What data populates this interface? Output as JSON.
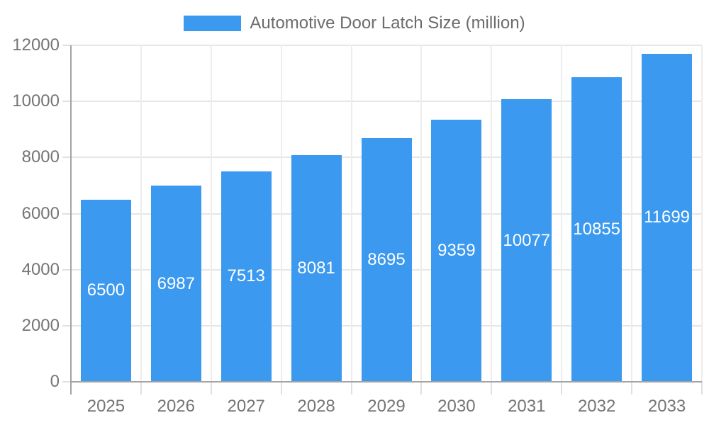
{
  "chart_data": {
    "type": "bar",
    "title": "Automotive Door Latch Size (million)",
    "legend": {
      "label": "Automotive Door Latch Size (million)",
      "position": "top"
    },
    "categories": [
      "2025",
      "2026",
      "2027",
      "2028",
      "2029",
      "2030",
      "2031",
      "2032",
      "2033"
    ],
    "values": [
      6500,
      6987,
      7513,
      8081,
      8695,
      9359,
      10077,
      10855,
      11699
    ],
    "value_labels_shown": true,
    "xlabel": "",
    "ylabel": "",
    "ylim": [
      0,
      12000
    ],
    "ytick_step": 2000,
    "ytick_labels": [
      "0",
      "2000",
      "4000",
      "6000",
      "8000",
      "10000",
      "12000"
    ],
    "grid": true,
    "colors": {
      "bar": "#3B99F0",
      "axis_line": "#a3a3a3",
      "gridline": "#e6e6e6",
      "gridline_vertical": "#ededed",
      "tick": "#e0e0e0",
      "tick_label": "#757575",
      "legend_text": "#6b6b6b",
      "bar_value_text": "#ffffff",
      "background": "#ffffff"
    }
  }
}
